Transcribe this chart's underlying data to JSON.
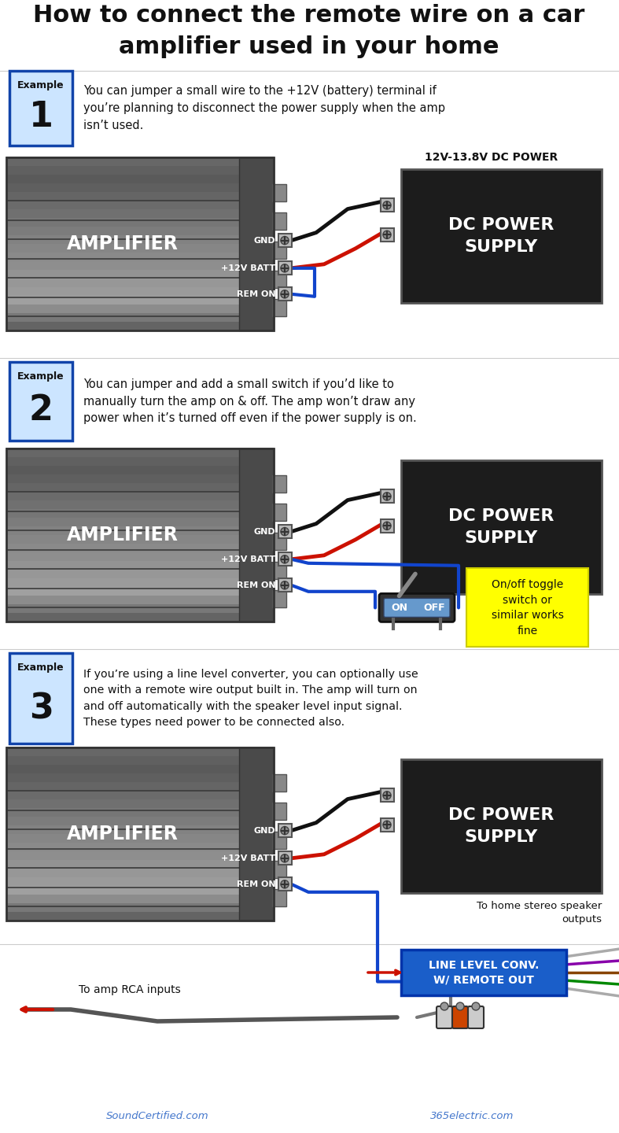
{
  "title_line1": "How to connect the remote wire on a car",
  "title_line2": "amplifier used in your home",
  "bg": "#ffffff",
  "title_color": "#111111",
  "amp_label": "AMPLIFIER",
  "dc_label": "DC POWER\nSUPPLY",
  "dc_top_label": "12V-13.8V DC POWER",
  "term_labels": [
    "GND",
    "+12V BATT",
    "REM ON"
  ],
  "ex1_number": "1",
  "ex1_text": "You can jumper a small wire to the +12V (battery) terminal if\nyou’re planning to disconnect the power supply when the amp\nisn’t used.",
  "ex2_number": "2",
  "ex2_text": "You can jumper and add a small switch if you’d like to\nmanually turn the amp on & off. The amp won’t draw any\npower when it’s turned off even if the power supply is on.",
  "ex3_number": "3",
  "ex3_text": "If you’re using a line level converter, you can optionally use\none with a remote wire output built in. The amp will turn on\nand off automatically with the speaker level input signal.\nThese types need power to be connected also.",
  "switch_note": "On/off toggle\nswitch or\nsimilar works\nfine",
  "llc_label": "LINE LEVEL CONV.\nW/ REMOTE OUT",
  "note_rca": "To amp RCA inputs",
  "note_speaker": "To home stereo speaker\noutputs",
  "footer_l": "SoundCertified.com",
  "footer_r": "365electric.com",
  "black": "#111111",
  "red": "#cc1100",
  "blue": "#1144cc",
  "dc_bg": "#1c1c1c",
  "example_bg": "#cce5ff",
  "example_border": "#1144aa",
  "yellow": "#ffff00",
  "llc_blue": "#1a5ec9"
}
